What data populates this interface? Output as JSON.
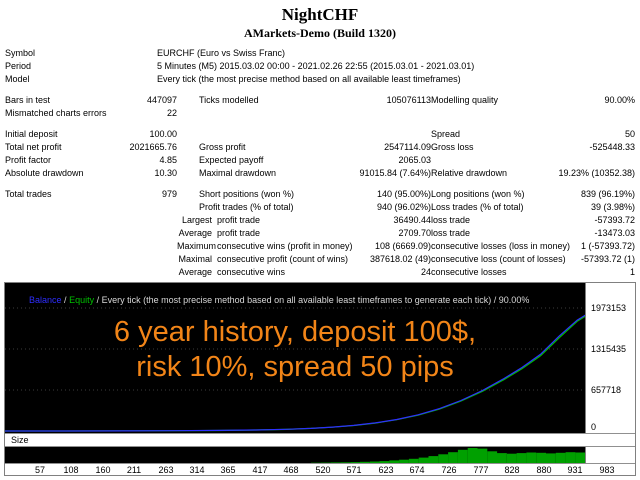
{
  "header": {
    "title": "NightCHF",
    "subtitle": "AMarkets-Demo (Build 1320)"
  },
  "report": {
    "rows": [
      {
        "type": "wide",
        "label": "Symbol",
        "value": "EURCHF (Euro vs Swiss Franc)"
      },
      {
        "type": "wide",
        "label": "Period",
        "value": "5 Minutes (M5) 2015.03.02 00:00 - 2021.02.26 22:55 (2015.03.01 - 2021.03.01)"
      },
      {
        "type": "wide",
        "label": "Model",
        "value": "Every tick (the most precise method based on all available least timeframes)"
      },
      {
        "type": "spacer"
      },
      {
        "type": "cols",
        "a_label": "Bars in test",
        "a_value": "447097",
        "b_label": "Ticks modelled",
        "b_value": "105076113",
        "c_label": "Modelling quality",
        "c_value": "90.00%"
      },
      {
        "type": "cols",
        "a_label": "Mismatched charts errors",
        "a_value": "22"
      },
      {
        "type": "spacer"
      },
      {
        "type": "cols",
        "a_label": "Initial deposit",
        "a_value": "100.00",
        "c_label": "Spread",
        "c_value": "50"
      },
      {
        "type": "cols",
        "a_label": "Total net profit",
        "a_value": "2021665.76",
        "b_label": "Gross profit",
        "b_value": "2547114.09",
        "c_label": "Gross loss",
        "c_value": "-525448.33"
      },
      {
        "type": "cols",
        "a_label": "Profit factor",
        "a_value": "4.85",
        "b_label": "Expected payoff",
        "b_value": "2065.03"
      },
      {
        "type": "cols",
        "a_label": "Absolute drawdown",
        "a_value": "10.30",
        "b_label": "Maximal drawdown",
        "b_value": "91015.84 (7.64%)",
        "c_label": "Relative drawdown",
        "c_value": "19.23% (10352.38)"
      },
      {
        "type": "spacer"
      },
      {
        "type": "cols",
        "a_label": "Total trades",
        "a_value": "979",
        "b_label": "Short positions (won %)",
        "b_value": "140 (95.00%)",
        "c_label": "Long positions (won %)",
        "c_value": "839 (96.19%)"
      },
      {
        "type": "cols",
        "b_label": "Profit trades (% of total)",
        "b_value": "940 (96.02%)",
        "c_label": "Loss trades (% of total)",
        "c_value": "39 (3.98%)"
      },
      {
        "type": "cols",
        "qual": "Largest",
        "b_label": "profit trade",
        "b_value": "36490.44",
        "c_label": "loss trade",
        "c_value": "-57393.72"
      },
      {
        "type": "cols",
        "qual": "Average",
        "b_label": "profit trade",
        "b_value": "2709.70",
        "c_label": "loss trade",
        "c_value": "-13473.03"
      },
      {
        "type": "cols",
        "qual": "Maximum",
        "b_label": "consecutive wins (profit in money)",
        "b_value": "108 (6669.09)",
        "c_label": "consecutive losses (loss in money)",
        "c_value": "1 (-57393.72)"
      },
      {
        "type": "cols",
        "qual": "Maximal",
        "b_label": "consecutive profit (count of wins)",
        "b_value": "387618.02 (49)",
        "c_label": "consecutive loss (count of losses)",
        "c_value": "-57393.72 (1)"
      },
      {
        "type": "cols",
        "qual": "Average",
        "b_label": "consecutive wins",
        "b_value": "24",
        "c_label": "consecutive losses",
        "c_value": "1"
      }
    ]
  },
  "chart": {
    "legend": {
      "balance": "Balance",
      "equity": "Equity",
      "separator": " / ",
      "description": "Every tick (the most precise method based on all available least timeframes to generate each tick)",
      "quality": "90.00%"
    },
    "overlay": {
      "line1": "6 year history, deposit 100$,",
      "line2": "risk 10%, spread 50 pips",
      "color": "#F28518"
    },
    "size_label": "Size",
    "colors": {
      "balance": "#2E2EFE",
      "equity": "#00C000",
      "grid": "#3C3C3C",
      "plot_bg": "#000000",
      "lots": "#00A000",
      "legend_text": "#D8D8D8",
      "axis_text": "#000000"
    }
  },
  "chart_data": {
    "type": "line",
    "title": "Strategy tester balance / equity graph with lot size histogram",
    "x_range": [
      0,
      1000
    ],
    "y_range": [
      0,
      2150000
    ],
    "x_ticks": [
      57,
      108,
      160,
      211,
      263,
      314,
      365,
      417,
      468,
      520,
      571,
      623,
      674,
      726,
      777,
      828,
      880,
      931,
      983
    ],
    "y_grid": [
      1973153,
      1315435,
      657718,
      0
    ],
    "series": [
      {
        "name": "Equity",
        "x": [
          0,
          100,
          200,
          280,
          350,
          410,
          460,
          500,
          535,
          570,
          605,
          640,
          675,
          710,
          745,
          780,
          815,
          845,
          875,
          905,
          935,
          960,
          983
        ],
        "y": [
          100,
          680,
          1950,
          4380,
          8800,
          15600,
          26300,
          41000,
          60500,
          88000,
          127000,
          181000,
          254000,
          352000,
          480000,
          637000,
          823000,
          1001000,
          1207000,
          1490000,
          1760000,
          1915000,
          1995000
        ]
      },
      {
        "name": "Balance",
        "x": [
          0,
          100,
          200,
          280,
          350,
          410,
          460,
          500,
          535,
          570,
          605,
          640,
          675,
          710,
          745,
          780,
          815,
          845,
          875,
          905,
          935,
          960,
          983
        ],
        "y": [
          100,
          700,
          2000,
          4500,
          9000,
          16000,
          27000,
          42000,
          62000,
          90000,
          130000,
          185000,
          260000,
          360000,
          490000,
          650000,
          840000,
          1020000,
          1230000,
          1520000,
          1780000,
          1930000,
          2021766
        ]
      }
    ],
    "lots": {
      "name": "Size",
      "x_start": 500,
      "x_step": 16,
      "max": 100,
      "values": [
        2,
        3,
        4,
        5,
        6,
        8,
        10,
        13,
        17,
        22,
        28,
        36,
        46,
        58,
        72,
        88,
        100,
        96,
        78,
        66,
        62,
        66,
        70,
        68,
        64,
        68,
        72,
        70
      ]
    }
  }
}
